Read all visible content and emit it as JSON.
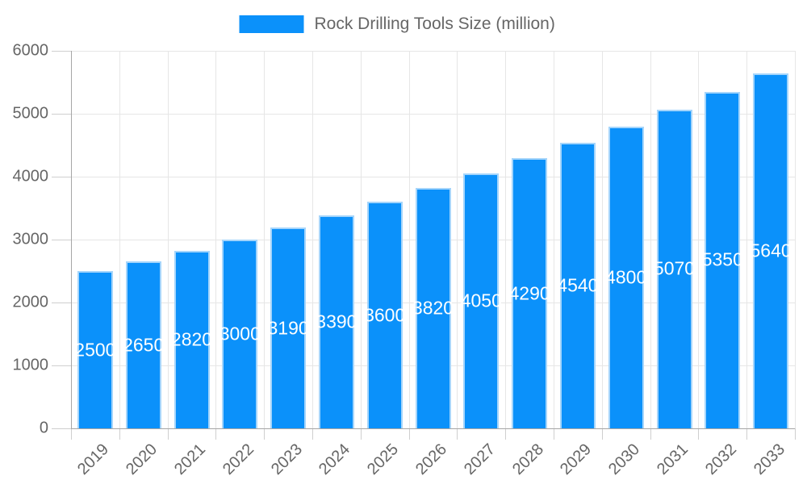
{
  "legend": {
    "label": "Rock Drilling Tools Size (million)"
  },
  "chart_data": {
    "type": "bar",
    "title": "Rock Drilling Tools Size (million)",
    "series_name": "Rock Drilling Tools Size (million)",
    "categories": [
      "2019",
      "2020",
      "2021",
      "2022",
      "2023",
      "2024",
      "2025",
      "2026",
      "2027",
      "2028",
      "2029",
      "2030",
      "2031",
      "2032",
      "2033"
    ],
    "values": [
      2500,
      2650,
      2820,
      3000,
      3190,
      3390,
      3600,
      3820,
      4050,
      4290,
      4540,
      4800,
      5070,
      5350,
      5640
    ],
    "xlabel": "",
    "ylabel": "",
    "ylim": [
      0,
      6000
    ],
    "yticks": [
      0,
      1000,
      2000,
      3000,
      4000,
      5000,
      6000
    ],
    "grid": true,
    "legend_position": "top",
    "value_labels_inside_bars": true,
    "x_label_rotation_deg": 45,
    "colors": {
      "bar": "#0b91fa",
      "bar_border": "#a5d5fb",
      "grid": "#e6e6e6",
      "axis": "#a6a6a6",
      "tick": "#cfcfcf",
      "text": "#666666",
      "value_label": "#ffffff",
      "background": "#ffffff"
    }
  }
}
